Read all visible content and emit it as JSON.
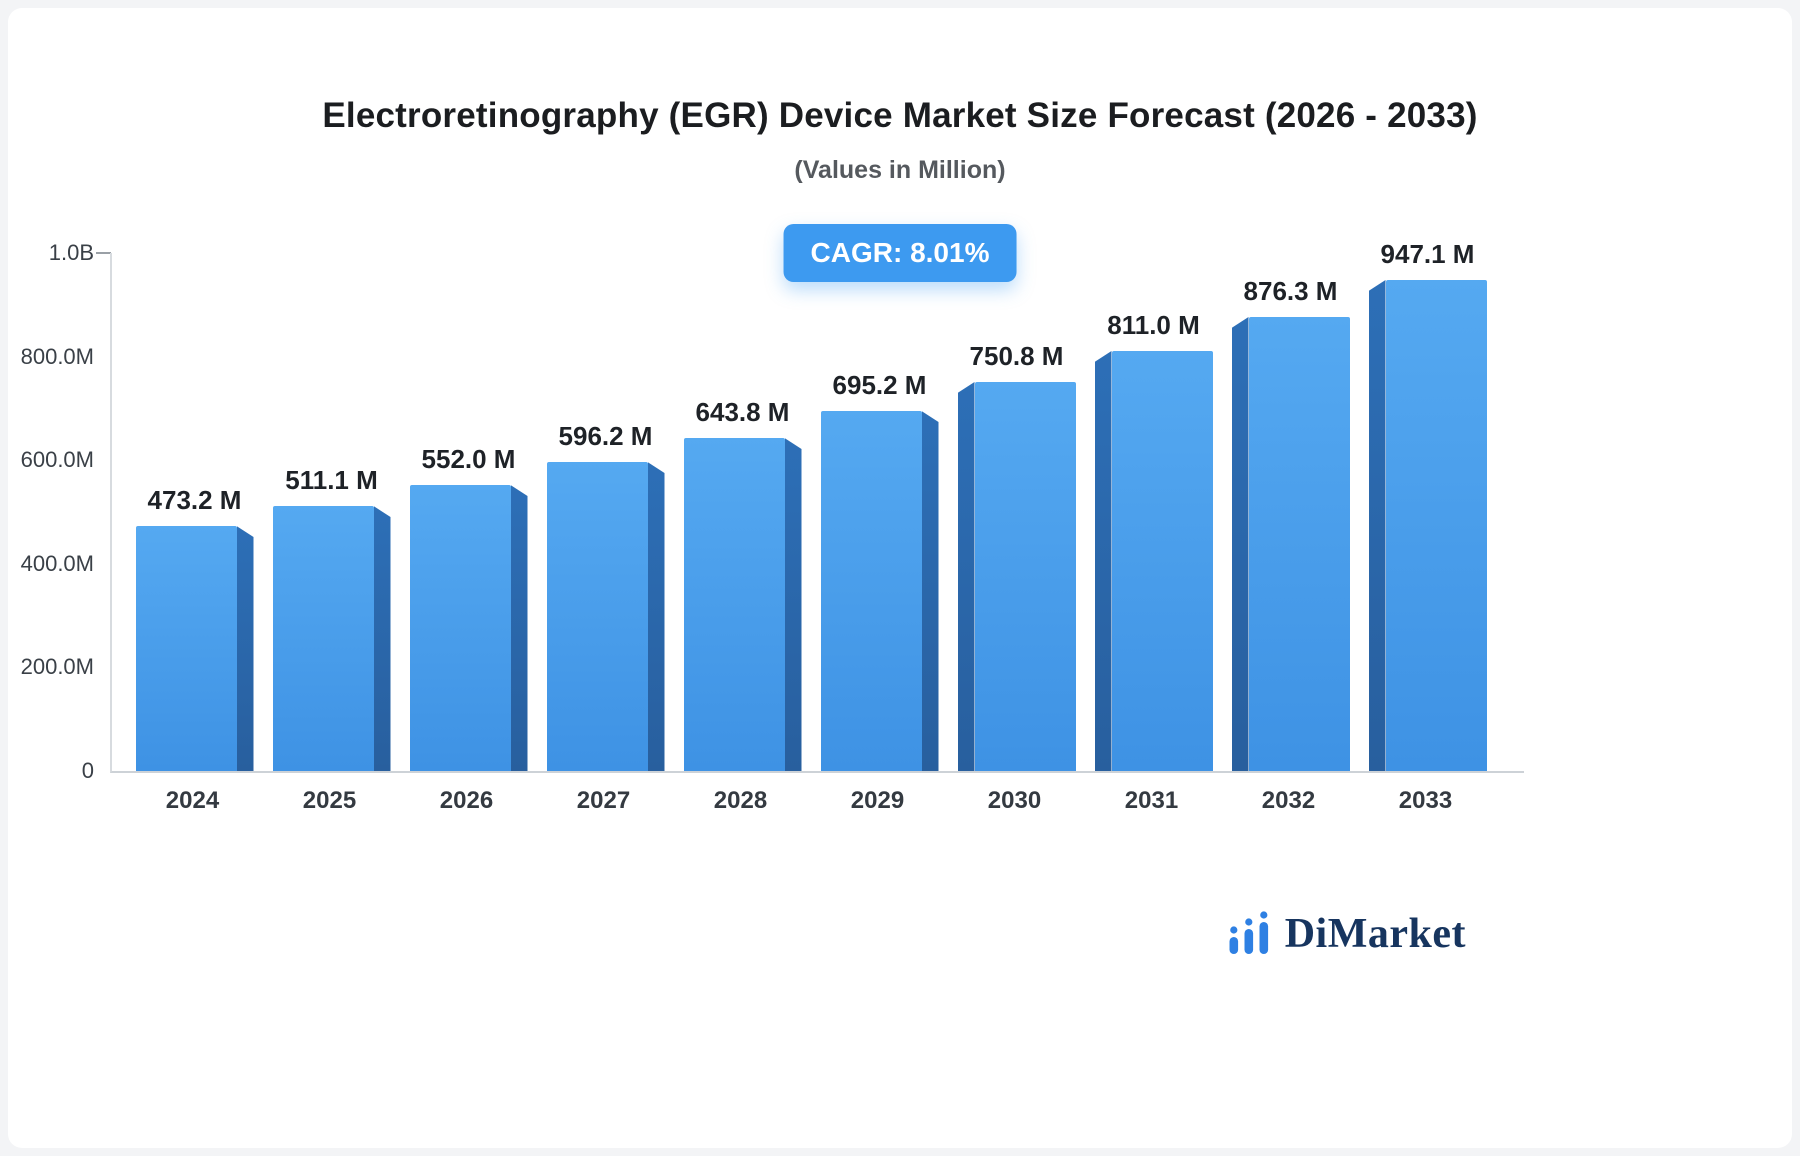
{
  "header": {
    "title": "Electroretinography (EGR) Device Market Size Forecast (2026 - 2033)",
    "subtitle": "(Values in Million)"
  },
  "badge": {
    "label": "CAGR: 8.01%",
    "color": "#3d9af0"
  },
  "logo": {
    "name": "DiMarket",
    "icon": "bar-chart-icon",
    "icon_color": "#2e80e3",
    "text_color": "#17355f"
  },
  "chart_data": {
    "type": "bar",
    "title": "Electroretinography (EGR) Device Market Size Forecast (2026 - 2033)",
    "subtitle": "(Values in Million)",
    "unit": "Million",
    "cagr": "8.01%",
    "categories": [
      "2024",
      "2025",
      "2026",
      "2027",
      "2028",
      "2029",
      "2030",
      "2031",
      "2032",
      "2033"
    ],
    "values": [
      473.2,
      511.1,
      552.0,
      596.2,
      643.8,
      695.2,
      750.8,
      811.0,
      876.3,
      947.1
    ],
    "value_labels": [
      "473.2 M",
      "511.1 M",
      "552.0 M",
      "596.2 M",
      "643.8 M",
      "695.2 M",
      "750.8 M",
      "811.0 M",
      "876.3 M",
      "947.1 M"
    ],
    "ylim": [
      0,
      1000
    ],
    "yticks": [
      {
        "value": 0,
        "label": "0"
      },
      {
        "value": 200,
        "label": "200.0M"
      },
      {
        "value": 400,
        "label": "400.0M"
      },
      {
        "value": 600,
        "label": "600.0M"
      },
      {
        "value": 800,
        "label": "800.0M"
      },
      {
        "value": 1000,
        "label": "1.0B"
      }
    ],
    "grid": false,
    "legend": false,
    "bar_color_light": "#55a9f1",
    "bar_color_main": "#3e92e4",
    "bar_side_color": "#2d6fb7"
  }
}
